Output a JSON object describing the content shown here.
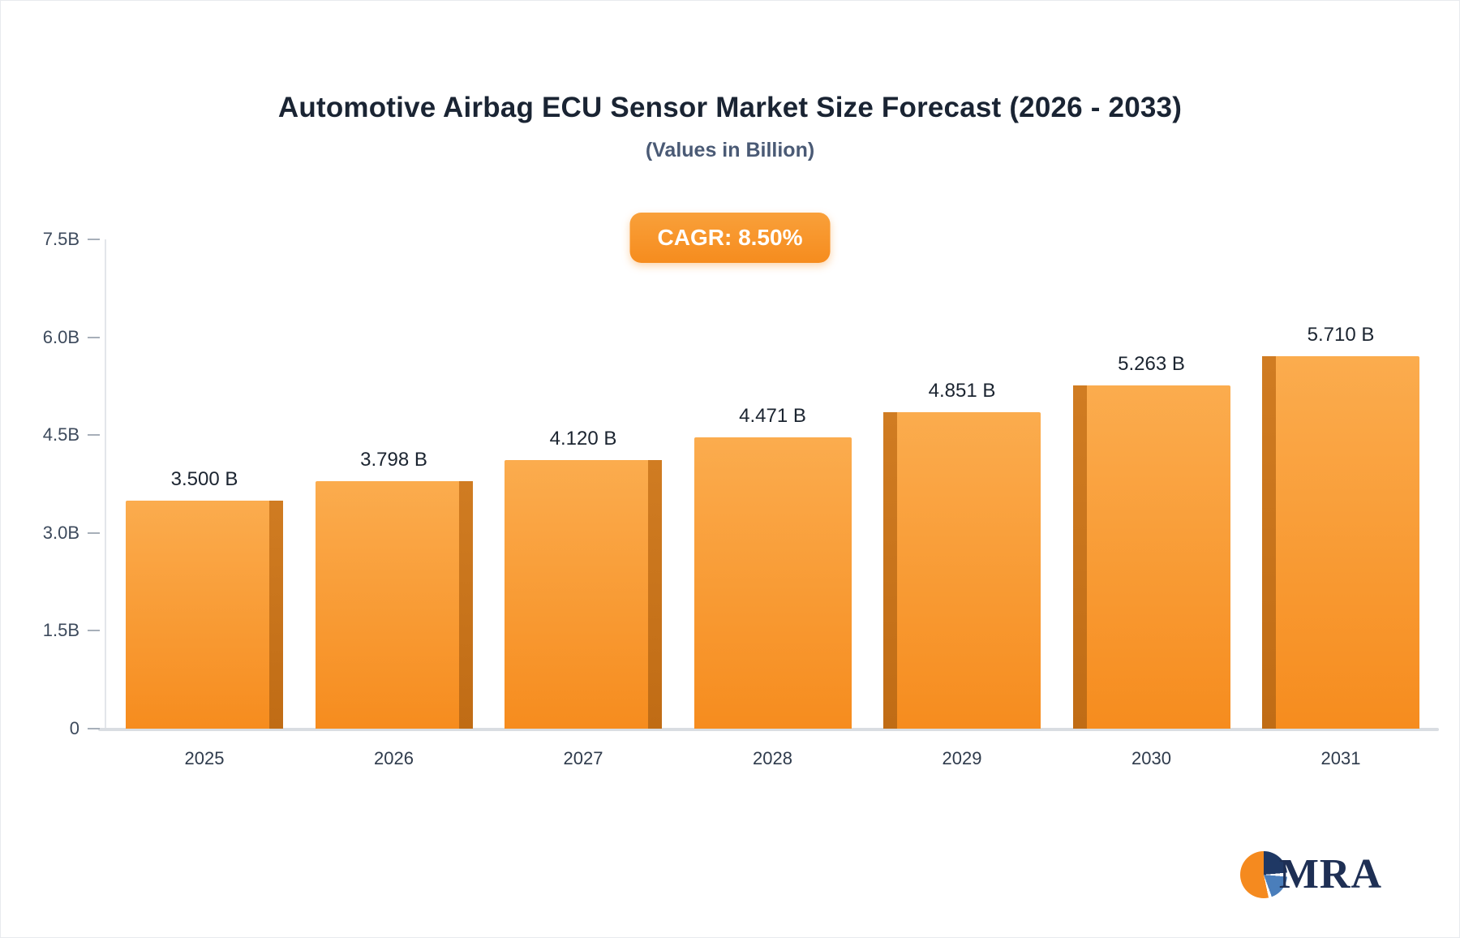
{
  "header": {
    "title": "Automotive Airbag ECU Sensor Market Size Forecast (2026 - 2033)",
    "subtitle": "(Values in Billion)"
  },
  "badge": {
    "label": "CAGR: 8.50%",
    "color": "#f68c1e"
  },
  "chart_data": {
    "type": "bar",
    "title": "Automotive Airbag ECU Sensor Market Size Forecast (2026 - 2033)",
    "subtitle": "(Values in Billion)",
    "categories": [
      "2025",
      "2026",
      "2027",
      "2028",
      "2029",
      "2030",
      "2031"
    ],
    "values": [
      3.5,
      3.798,
      4.12,
      4.471,
      4.851,
      5.263,
      5.71
    ],
    "value_labels": [
      "3.500 B",
      "3.798 B",
      "4.120 B",
      "4.471 B",
      "4.851 B",
      "5.263 B",
      "5.710 B"
    ],
    "ylabel": "",
    "xlabel": "",
    "ylim": [
      0,
      7.5
    ],
    "yticks": [
      {
        "value": 7.5,
        "label": "7.5B"
      },
      {
        "value": 6.0,
        "label": "6.0B"
      },
      {
        "value": 4.5,
        "label": "4.5B"
      },
      {
        "value": 3.0,
        "label": "3.0B"
      },
      {
        "value": 1.5,
        "label": "1.5B"
      },
      {
        "value": 0,
        "label": "0"
      }
    ],
    "grid": false,
    "legend": false,
    "bar_color_top": "#fbac4e",
    "bar_color_bottom": "#f68c1e",
    "bar_side_color": "#c06c15"
  },
  "logo": {
    "text": "MRA",
    "icon_colors": [
      "#f58a1f",
      "#1f3864",
      "#4a7ebb"
    ]
  }
}
